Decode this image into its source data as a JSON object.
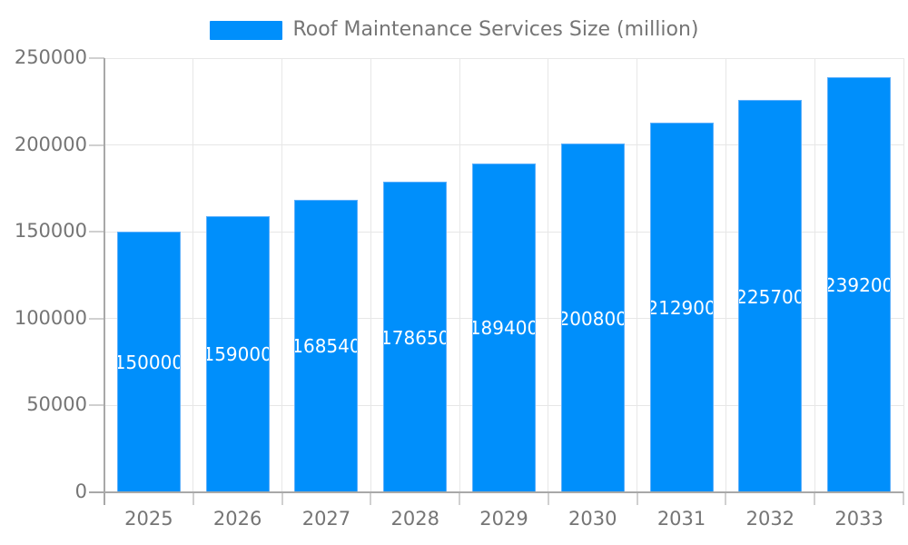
{
  "chart_data": {
    "type": "bar",
    "title": "",
    "legend": "Roof Maintenance Services Size (million)",
    "legend_position": "top",
    "categories": [
      "2025",
      "2026",
      "2027",
      "2028",
      "2029",
      "2030",
      "2031",
      "2032",
      "2033"
    ],
    "values": [
      150000,
      159000,
      168540,
      178650,
      189400,
      200800,
      212900,
      225700,
      239200
    ],
    "data_labels": [
      "150000",
      "159000",
      "168540",
      "178650",
      "189400",
      "200800",
      "212900",
      "225700",
      "239200"
    ],
    "xlabel": "",
    "ylabel": "",
    "ylim": [
      0,
      250000
    ],
    "ytick_step": 50000,
    "ytick_labels": [
      "0",
      "50000",
      "100000",
      "150000",
      "200000",
      "250000"
    ],
    "grid": true,
    "colors": {
      "bar": "#008FFB",
      "bar_edge": "#5FB0FB",
      "grid": "#e7e7e7",
      "axis": "#a8a8a8",
      "tick": "#d0d0d0",
      "text": "#757575",
      "data_label": "#ffffff",
      "background": "#ffffff"
    }
  }
}
